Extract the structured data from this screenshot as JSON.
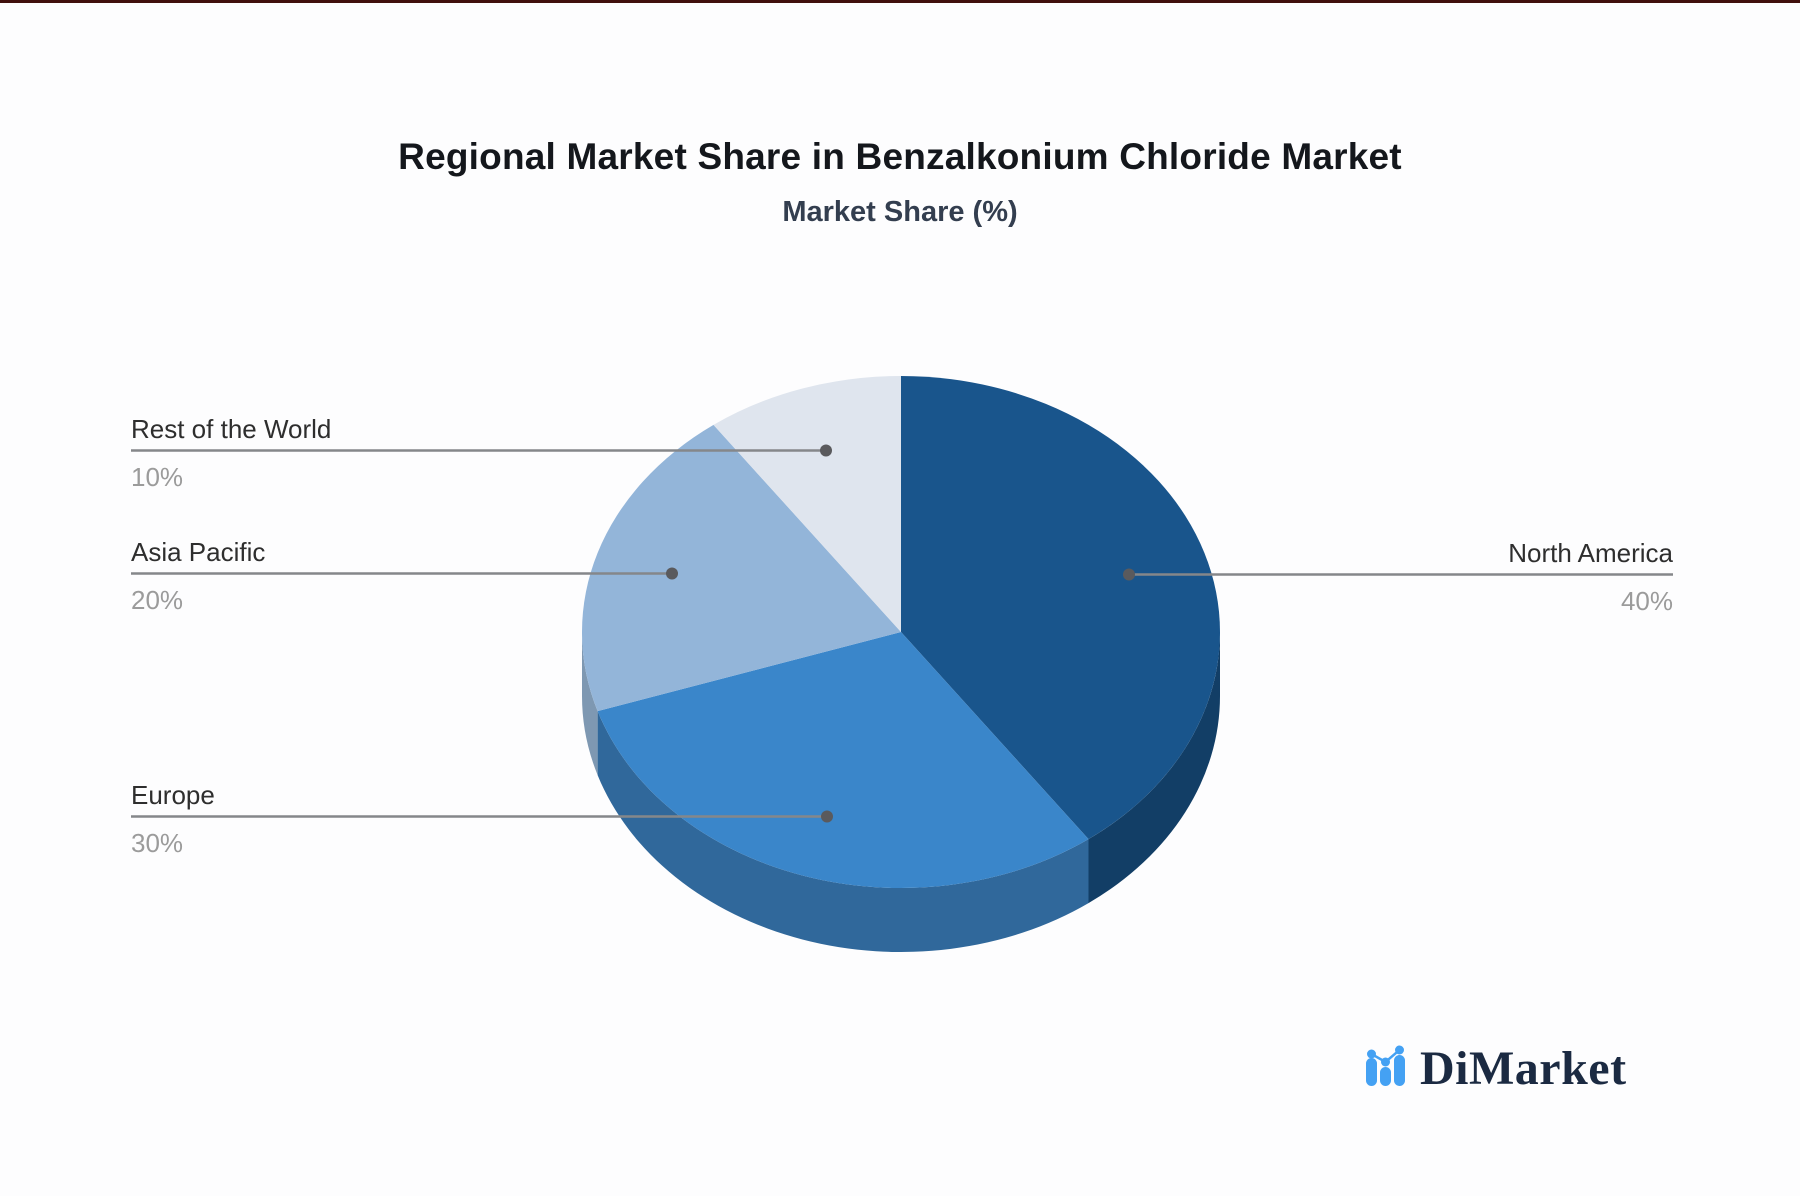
{
  "page": {
    "background": "#fdfdfe",
    "top_strip_color": "#40100c"
  },
  "header": {
    "title": "Regional Market Share in Benzalkonium Chloride Market",
    "subtitle": "Market Share (%)"
  },
  "chart_data": {
    "type": "pie",
    "style": "3d",
    "title": "Regional Market Share in Benzalkonium Chloride Market",
    "subtitle": "Market Share (%)",
    "unit": "%",
    "start_angle_deg": 0,
    "direction": "clockwise",
    "labels": [
      "North America",
      "Europe",
      "Asia Pacific",
      "Rest of the World"
    ],
    "values": [
      40,
      30,
      20,
      10
    ],
    "percent_labels": [
      "40%",
      "30%",
      "20%",
      "10%"
    ],
    "colors": [
      "#19558C",
      "#3A86CA",
      "#93B5D9",
      "#DFE5EE"
    ],
    "side_colors": [
      "#123E66",
      "#30689B",
      "#7E98B2",
      "#CBD4E0"
    ],
    "leader_line_color": "#85878a",
    "leader_dot_color": "#5a5a5d",
    "label_color": "#2e2e2e",
    "percent_color": "#9b9b9b",
    "legend_position": "callouts"
  },
  "logo": {
    "text": "DiMarket",
    "icon": "bar-line-chart-icon",
    "icon_color": "#44a1f3",
    "text_color": "#1b2a42"
  }
}
